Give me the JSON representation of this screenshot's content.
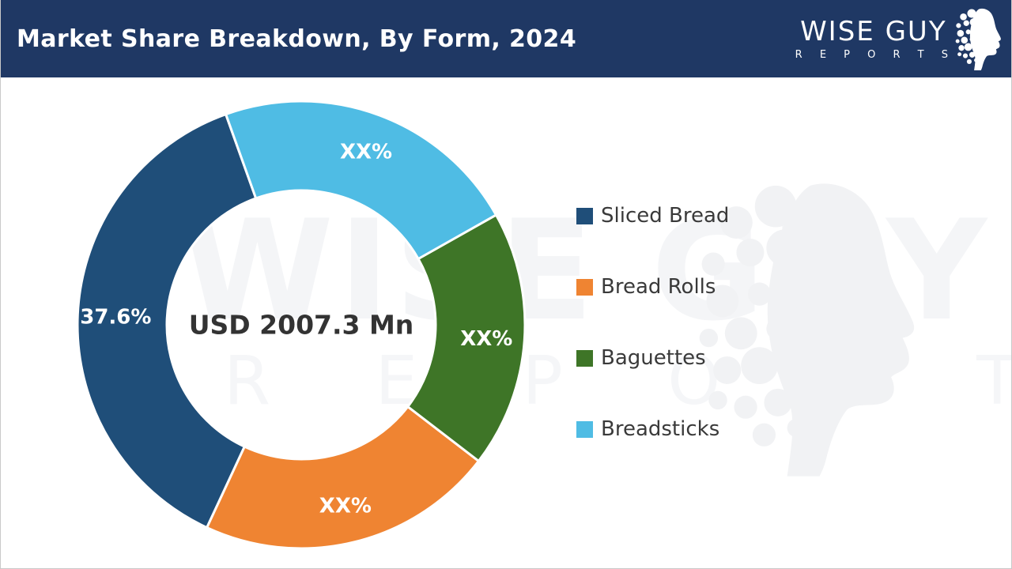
{
  "header": {
    "title": "Market Share Breakdown, By Form, 2024",
    "logo": {
      "line1": "WISE GUY",
      "line2": "R E P O R T S"
    },
    "bg_color": "#1f3864"
  },
  "watermark": {
    "line1": "WISE GUY",
    "line2": "R E P O R T S"
  },
  "chart_data": {
    "type": "pie",
    "subtype": "donut",
    "title": "Market Share Breakdown, By Form, 2024",
    "center_label": "USD 2007.3 Mn",
    "start_angle_deg": 109.7,
    "direction": "counterclockwise",
    "inner_radius_ratio": 0.6,
    "legend_position": "right",
    "segments": [
      {
        "label": "Sliced Bread",
        "value_pct": 37.6,
        "display_label": "37.6%",
        "color": "#1F4E79"
      },
      {
        "label": "Bread Rolls",
        "value_pct": 21.5,
        "display_label": "XX%",
        "color": "#EF8432"
      },
      {
        "label": "Baguettes",
        "value_pct": 18.6,
        "display_label": "XX%",
        "color": "#3E7527"
      },
      {
        "label": "Breadsticks",
        "value_pct": 22.3,
        "display_label": "XX%",
        "color": "#4FBCE4"
      }
    ]
  }
}
